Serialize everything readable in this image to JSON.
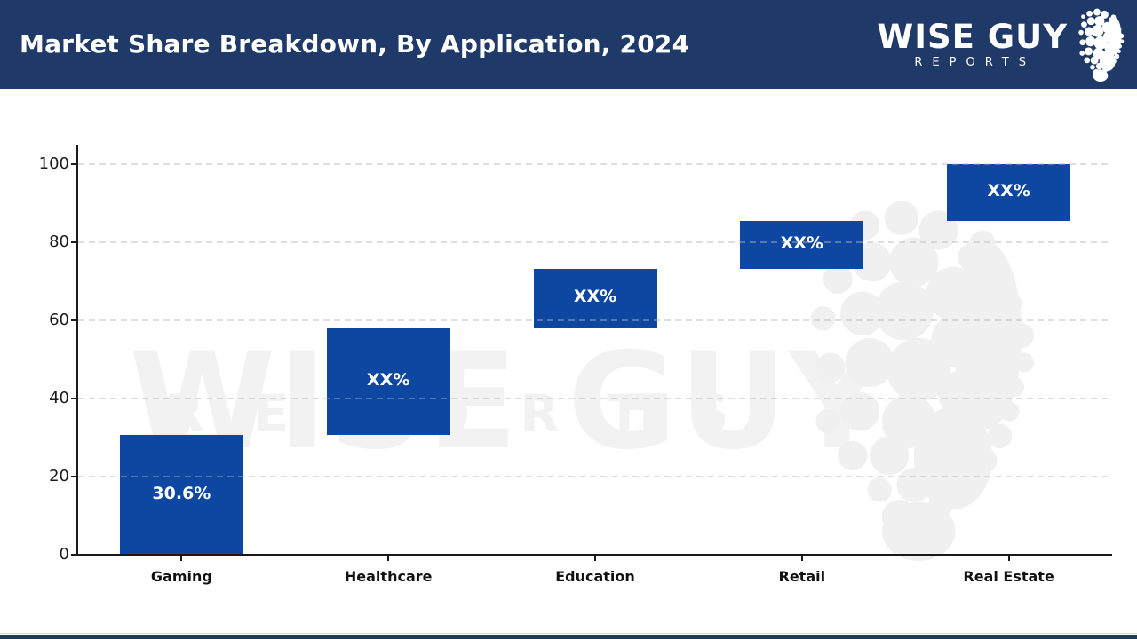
{
  "header": {
    "title": "Market Share Breakdown, By Application, 2024"
  },
  "logo": {
    "line1": "WISE GUY",
    "line2": "REPORTS"
  },
  "watermark": {
    "line1": "WISE GUY",
    "line2": "REPORTS"
  },
  "colors": {
    "header_bg": "#1f3a68",
    "bar_blue": "#0d47a1",
    "bar_label": "#ffffff",
    "axis": "#1a1a1a",
    "gridline": "#dcdcdc",
    "watermark": "#f2f2f2"
  },
  "chart_data": {
    "type": "bar",
    "subtype": "waterfall",
    "title": "Market Share Breakdown, By Application, 2024",
    "categories": [
      "Gaming",
      "Healthcare",
      "Education",
      "Retail",
      "Real Estate"
    ],
    "segments": [
      {
        "category": "Gaming",
        "start": 0,
        "end": 30.6,
        "label": "30.6%"
      },
      {
        "category": "Healthcare",
        "start": 30.6,
        "end": 58.0,
        "label": "XX%"
      },
      {
        "category": "Education",
        "start": 58.0,
        "end": 73.2,
        "label": "XX%"
      },
      {
        "category": "Retail",
        "start": 73.2,
        "end": 85.5,
        "label": "XX%"
      },
      {
        "category": "Real Estate",
        "start": 85.5,
        "end": 100.0,
        "label": "XX%"
      }
    ],
    "values_increment": [
      30.6,
      27.4,
      15.2,
      12.3,
      14.5
    ],
    "yticks": [
      0,
      20,
      40,
      60,
      80,
      100
    ],
    "ylim": [
      0,
      100
    ],
    "xlabel": "",
    "ylabel": "",
    "grid": "horizontal-dashed",
    "legend": "none",
    "bar_color": "#0d47a1",
    "bar_label_color": "#ffffff"
  }
}
